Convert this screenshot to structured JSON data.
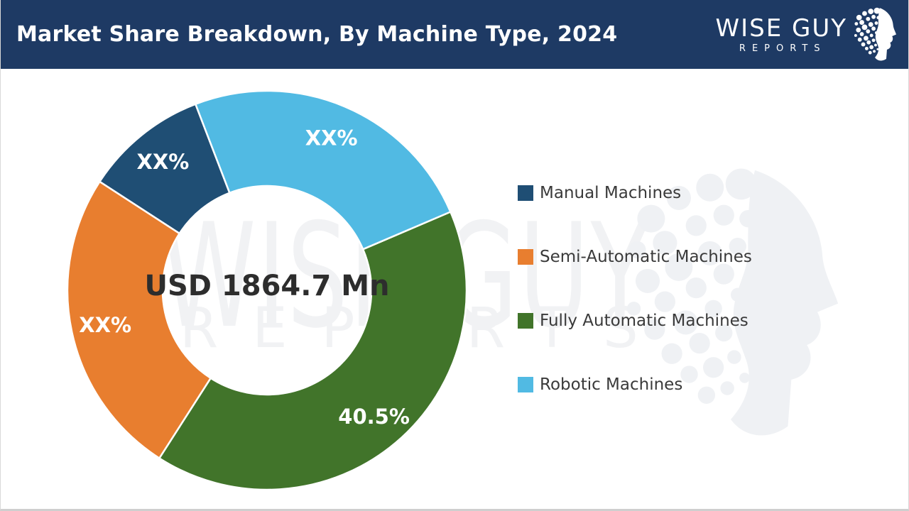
{
  "header": {
    "logo": {
      "line1": "WISE GUY",
      "line2": "REPORTS"
    }
  },
  "watermark": {
    "line1": "WISE GUY",
    "line2": "REPORTS"
  },
  "colors": {
    "header_bg": "#1e3a64",
    "manual": "#1f4e74",
    "semi_automatic": "#e87e2f",
    "fully_automatic": "#41742a",
    "robotic": "#51bae3",
    "center_text": "#2d2d2d",
    "legend_text": "#3a3a3a",
    "watermark": "#f1f2f4",
    "wedge_gap": "#ffffff"
  },
  "chart_data": {
    "type": "pie",
    "title": "Market Share Breakdown, By Machine Type, 2024",
    "donut": true,
    "center_label": "USD 1864.7 Mn",
    "legend_position": "right",
    "start_angle_deg": 111,
    "direction": "counterclockwise",
    "series": [
      {
        "name": "Manual Machines",
        "value_pct": 10.0,
        "label": "XX%",
        "color": "#1f4e74"
      },
      {
        "name": "Semi-Automatic Machines",
        "value_pct": 25.1,
        "label": "XX%",
        "color": "#e87e2f"
      },
      {
        "name": "Fully Automatic Machines",
        "value_pct": 40.5,
        "label": "40.5%",
        "color": "#41742a"
      },
      {
        "name": "Robotic Machines",
        "value_pct": 24.4,
        "label": "XX%",
        "color": "#51bae3"
      }
    ]
  }
}
